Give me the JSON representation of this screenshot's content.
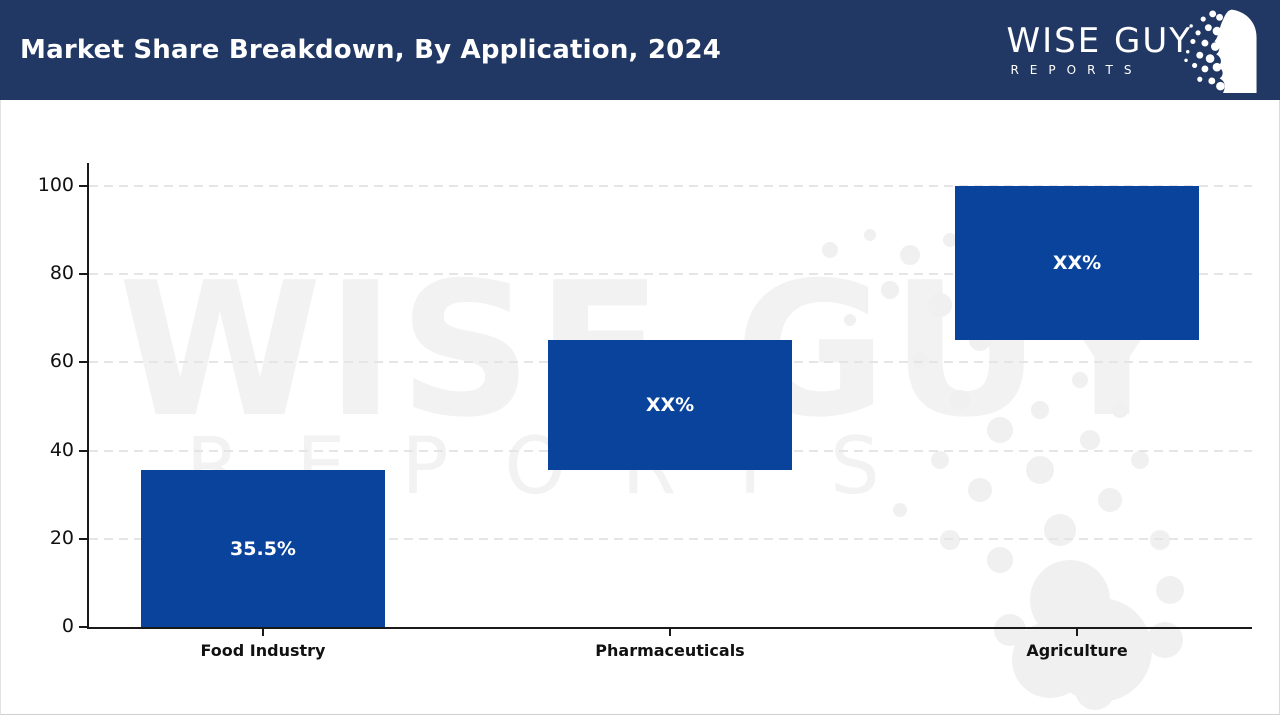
{
  "header": {
    "title": "Market Share Breakdown, By Application, 2024",
    "logo": {
      "line1": "WISE GUY",
      "line2": "REPORTS"
    }
  },
  "watermark": {
    "line1": "WISE GUY",
    "line2": "REPORTS"
  },
  "chart_data": {
    "type": "bar",
    "variant": "floating_segment_bars",
    "title": "Market Share Breakdown, By Application, 2024",
    "categories": [
      "Food Industry",
      "Pharmaceuticals",
      "Agriculture"
    ],
    "series": [
      {
        "name": "Market Share (%)",
        "bars": [
          {
            "category": "Food Industry",
            "start": 0,
            "end": 35.5,
            "label": "35.5%"
          },
          {
            "category": "Pharmaceuticals",
            "start": 35.5,
            "end": 65,
            "label": "XX%"
          },
          {
            "category": "Agriculture",
            "start": 65,
            "end": 100,
            "label": "XX%"
          }
        ]
      }
    ],
    "xlabel": "",
    "ylabel": "",
    "yticks": [
      0,
      20,
      40,
      60,
      80,
      100
    ],
    "ylim": [
      0,
      105
    ],
    "grid": "horizontal-dashed",
    "legend": "none",
    "bar_color": "#09439b",
    "value_label_color": "#ffffff"
  },
  "colors": {
    "header_bg": "#223864",
    "bar": "#09439b",
    "grid": "#e5e5e5",
    "axis": "#1a1a1a",
    "watermark": "#f2f2f2",
    "border": "#d9d9d9"
  }
}
